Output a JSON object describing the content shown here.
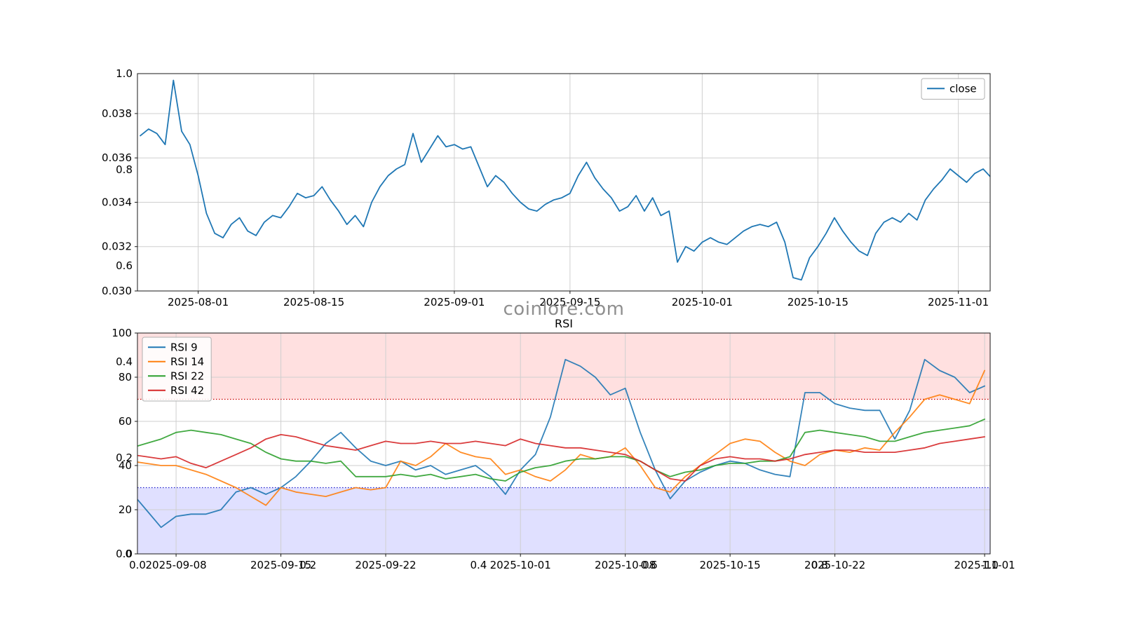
{
  "watermark": "coinlore.com",
  "figure_bg": "#ffffff",
  "chart_data": [
    {
      "type": "line",
      "name": "price",
      "title": "",
      "legend": {
        "loc": "upper right"
      },
      "x_start": "2025-07-25",
      "x_tick_labels": [
        "2025-08-01",
        "2025-08-15",
        "2025-09-01",
        "2025-09-15",
        "2025-10-01",
        "2025-10-15",
        "2025-11-01"
      ],
      "x_tick_days": [
        7,
        21,
        38,
        52,
        68,
        82,
        99
      ],
      "xlim_days": [
        -0.35,
        102.85
      ],
      "y_tick_labels": [
        "0.030",
        "0.032",
        "0.034",
        "0.036",
        "0.038"
      ],
      "y_tick_values": [
        0.03,
        0.032,
        0.034,
        0.036,
        0.038
      ],
      "ylim": [
        0.03,
        0.0398
      ],
      "grid": true,
      "series": [
        {
          "name": "close",
          "color": "#1f77b4",
          "values": [
            0.037,
            0.0373,
            0.0371,
            0.0366,
            0.0395,
            0.0372,
            0.0366,
            0.0352,
            0.0335,
            0.0326,
            0.0324,
            0.033,
            0.0333,
            0.0327,
            0.0325,
            0.0331,
            0.0334,
            0.0333,
            0.0338,
            0.0344,
            0.0342,
            0.0343,
            0.0347,
            0.0341,
            0.0336,
            0.033,
            0.0334,
            0.0329,
            0.034,
            0.0347,
            0.0352,
            0.0355,
            0.0357,
            0.0371,
            0.0358,
            0.0364,
            0.037,
            0.0365,
            0.0366,
            0.0364,
            0.0365,
            0.0356,
            0.0347,
            0.0352,
            0.0349,
            0.0344,
            0.034,
            0.0337,
            0.0336,
            0.0339,
            0.0341,
            0.0342,
            0.0344,
            0.0352,
            0.0358,
            0.0351,
            0.0346,
            0.0342,
            0.0336,
            0.0338,
            0.0343,
            0.0336,
            0.0342,
            0.0334,
            0.0336,
            0.0313,
            0.032,
            0.0318,
            0.0322,
            0.0324,
            0.0322,
            0.0321,
            0.0324,
            0.0327,
            0.0329,
            0.033,
            0.0329,
            0.0331,
            0.0322,
            0.0306,
            0.0305,
            0.0315,
            0.032,
            0.0326,
            0.0333,
            0.0327,
            0.0322,
            0.0318,
            0.0316,
            0.0326,
            0.0331,
            0.0333,
            0.0331,
            0.0335,
            0.0332,
            0.0341,
            0.0346,
            0.035,
            0.0355,
            0.0352,
            0.0349,
            0.0353,
            0.0355,
            0.0351
          ]
        }
      ]
    },
    {
      "type": "line",
      "name": "rsi",
      "title": "RSI",
      "legend": {
        "loc": "upper left"
      },
      "x_start": "2025-09-05",
      "x_tick_labels": [
        "2025-09-08",
        "2025-09-15",
        "2025-09-22",
        "2025-10-01",
        "2025-10-08",
        "2025-10-15",
        "2025-10-22",
        "2025-11-01"
      ],
      "x_tick_days": [
        3,
        10,
        17,
        26,
        33,
        40,
        47,
        57
      ],
      "xlim_days": [
        0.42,
        57.37
      ],
      "y_tick_labels": [
        "0",
        "20",
        "40",
        "60",
        "80",
        "100"
      ],
      "y_tick_values": [
        0,
        20,
        40,
        60,
        80,
        100
      ],
      "ylim": [
        0,
        100
      ],
      "grid": true,
      "bands": [
        {
          "name": "overbought-band",
          "y1": 70,
          "y2": 100,
          "color": "rgba(255,0,0,0.12)"
        },
        {
          "name": "oversold-band",
          "y1": 0,
          "y2": 30,
          "color": "rgba(0,0,255,0.12)"
        }
      ],
      "hlines": [
        {
          "name": "overbought-threshold-line",
          "y": 70,
          "color": "#cc0000"
        },
        {
          "name": "oversold-threshold-line",
          "y": 30,
          "color": "#2222cc"
        }
      ],
      "series": [
        {
          "name": "RSI 9",
          "color": "#1f77b4",
          "values": [
            28,
            20,
            12,
            17,
            18,
            18,
            20,
            28,
            30,
            27,
            30,
            35,
            42,
            50,
            55,
            48,
            42,
            40,
            42,
            38,
            40,
            36,
            38,
            40,
            35,
            27,
            38,
            45,
            62,
            88,
            85,
            80,
            72,
            75,
            55,
            38,
            25,
            33,
            37,
            40,
            42,
            41,
            38,
            36,
            35,
            73,
            73,
            68,
            66,
            65,
            65,
            52,
            65,
            88,
            83,
            80,
            73,
            76
          ]
        },
        {
          "name": "RSI 14",
          "color": "#ff7f0e",
          "values": [
            42,
            41,
            40,
            40,
            38,
            36,
            33,
            30,
            26,
            22,
            30,
            28,
            27,
            26,
            28,
            30,
            29,
            30,
            42,
            40,
            44,
            50,
            46,
            44,
            43,
            36,
            38,
            35,
            33,
            38,
            45,
            43,
            44,
            48,
            40,
            30,
            28,
            35,
            40,
            45,
            50,
            52,
            51,
            46,
            42,
            40,
            45,
            47,
            46,
            48,
            47,
            55,
            62,
            70,
            72,
            70,
            68,
            83
          ]
        },
        {
          "name": "RSI 22",
          "color": "#2ca02c",
          "values": [
            48,
            50,
            52,
            55,
            56,
            55,
            54,
            52,
            50,
            46,
            43,
            42,
            42,
            41,
            42,
            35,
            35,
            35,
            36,
            35,
            36,
            34,
            35,
            36,
            34,
            33,
            37,
            39,
            40,
            42,
            43,
            43,
            44,
            44,
            42,
            38,
            35,
            37,
            38,
            40,
            41,
            41,
            42,
            42,
            44,
            55,
            56,
            55,
            54,
            53,
            51,
            51,
            53,
            55,
            56,
            57,
            58,
            61
          ]
        },
        {
          "name": "RSI 42",
          "color": "#d62728",
          "values": [
            45,
            44,
            43,
            44,
            41,
            39,
            42,
            45,
            48,
            52,
            54,
            53,
            51,
            49,
            48,
            47,
            49,
            51,
            50,
            50,
            51,
            50,
            50,
            51,
            50,
            49,
            52,
            50,
            49,
            48,
            48,
            47,
            46,
            45,
            42,
            38,
            34,
            33,
            40,
            43,
            44,
            43,
            43,
            42,
            43,
            45,
            46,
            47,
            47,
            46,
            46,
            46,
            47,
            48,
            50,
            51,
            52,
            53
          ]
        }
      ]
    }
  ],
  "ghost_axis": {
    "y_labels": [
      "1.0",
      "0.8",
      "0.6",
      "0.4",
      "0.2",
      "0.0"
    ],
    "x_labels": [
      "0.0",
      "0.2",
      "0.4",
      "0.6",
      "0.8",
      "1.0"
    ]
  }
}
